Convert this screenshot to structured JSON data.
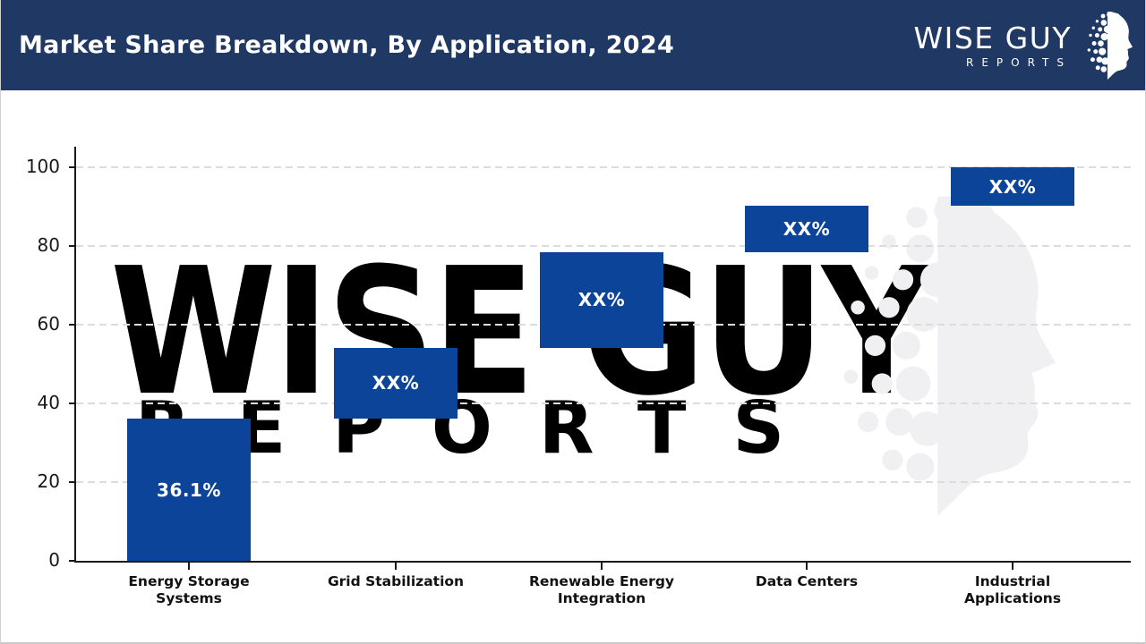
{
  "header": {
    "title": "Market Share Breakdown, By Application, 2024",
    "logo": {
      "line1": "WISE GUY",
      "line2": "REPORTS"
    }
  },
  "watermark": {
    "line1": "WISE GUY",
    "line2": "REPORTS"
  },
  "colors": {
    "header_bg": "#1f3864",
    "bar": "#0c4499",
    "grid": "#dcdcdc",
    "axis": "#1a1a1a",
    "bar_label": "#ffffff",
    "watermark": "#f0f0f3",
    "title_text": "#ffffff"
  },
  "chart_data": {
    "type": "bar",
    "subtype": "waterfall",
    "title": "Market Share Breakdown, By Application, 2024",
    "xlabel": "",
    "ylabel": "",
    "ylim": [
      0,
      100
    ],
    "yticks": [
      0,
      20,
      40,
      60,
      80,
      100
    ],
    "grid": true,
    "categories": [
      "Energy Storage Systems",
      "Grid Stabilization",
      "Renewable Energy Integration",
      "Data Centers",
      "Industrial Applications"
    ],
    "segments": [
      {
        "category": "Energy Storage Systems",
        "category_lines": [
          "Energy Storage",
          "Systems"
        ],
        "start": 0,
        "end": 36.1,
        "label": "36.1%"
      },
      {
        "category": "Grid Stabilization",
        "category_lines": [
          "Grid Stabilization"
        ],
        "start": 36.1,
        "end": 54.2,
        "label": "XX%"
      },
      {
        "category": "Renewable Energy Integration",
        "category_lines": [
          "Renewable Energy",
          "Integration"
        ],
        "start": 54.2,
        "end": 78.4,
        "label": "XX%"
      },
      {
        "category": "Data Centers",
        "category_lines": [
          "Data Centers"
        ],
        "start": 78.4,
        "end": 90.2,
        "label": "XX%"
      },
      {
        "category": "Industrial Applications",
        "category_lines": [
          "Industrial",
          "Applications"
        ],
        "start": 90.2,
        "end": 100,
        "label": "XX%"
      }
    ]
  }
}
